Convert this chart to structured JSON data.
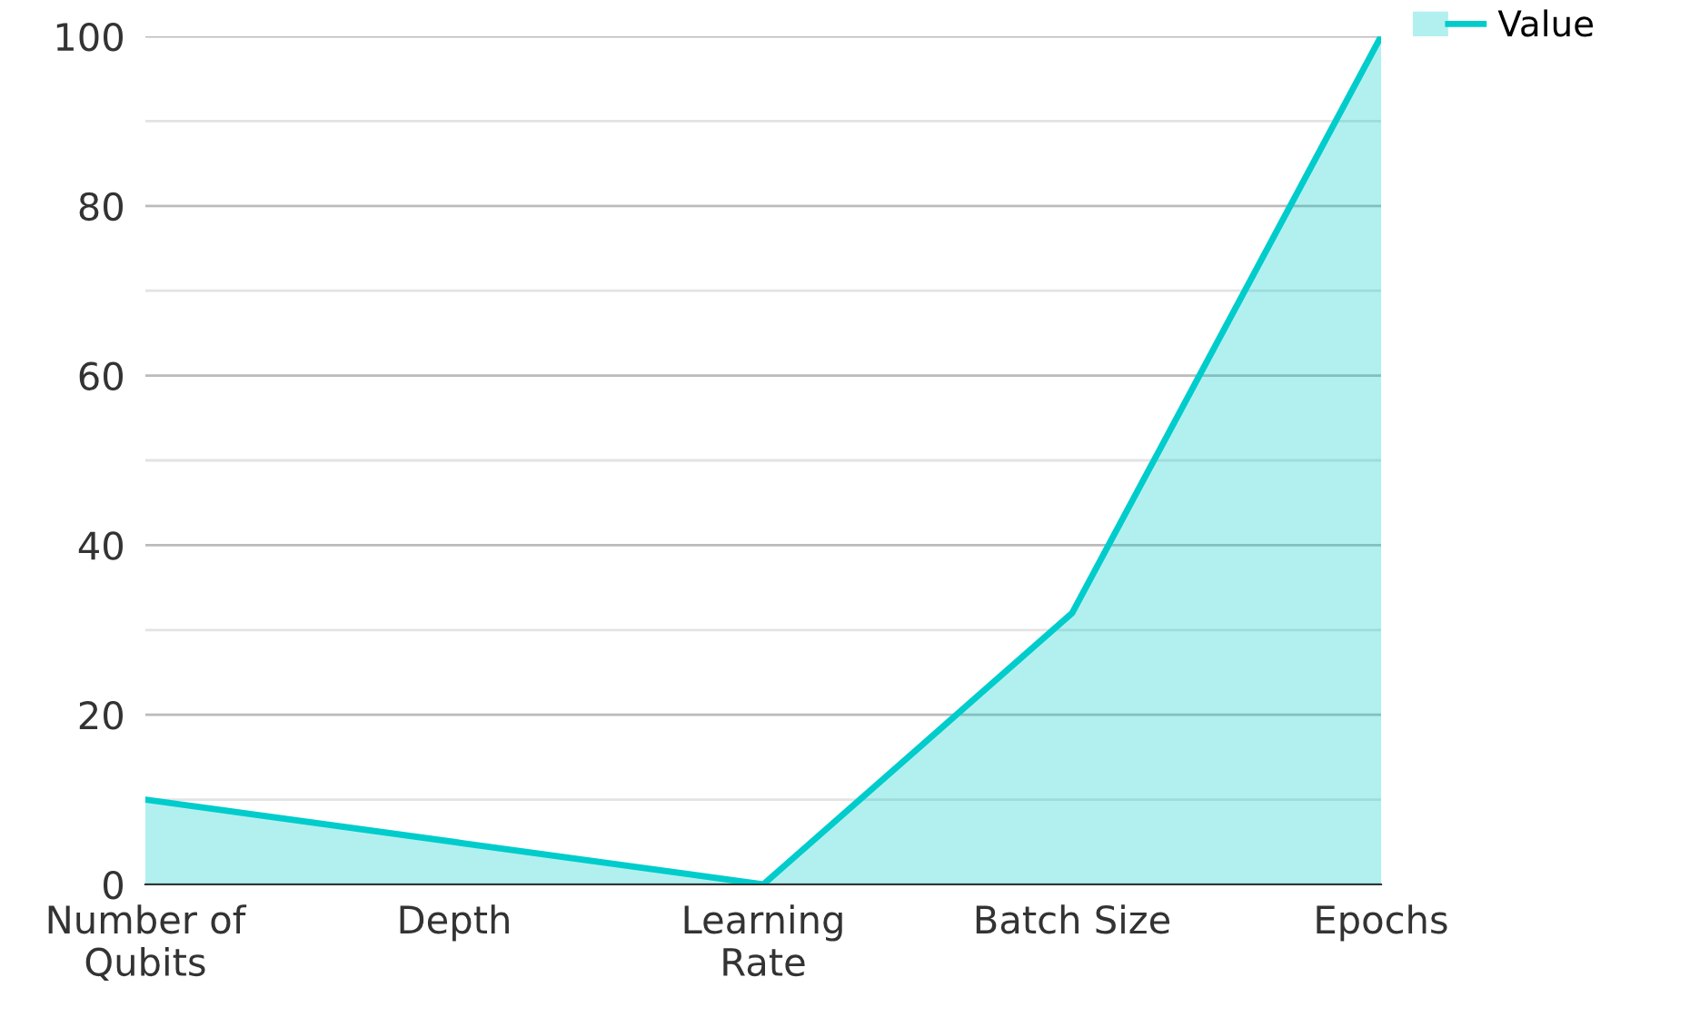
{
  "chart_data": {
    "type": "area",
    "categories": [
      "Number of\nQubits",
      "Depth",
      "Learning\nRate",
      "Batch Size",
      "Epochs"
    ],
    "series": [
      {
        "name": "Value",
        "color": "#00cccc",
        "values": [
          10,
          5,
          0,
          32,
          100
        ]
      }
    ],
    "ylim": [
      0,
      100
    ],
    "yticks": [
      0,
      {
        "value": 10,
        "label": null
      },
      20,
      {
        "value": 30,
        "label": null
      },
      40,
      {
        "value": 50,
        "label": null
      },
      60,
      {
        "value": 70,
        "label": null
      },
      80,
      {
        "value": 90,
        "label": null
      },
      100
    ],
    "grid": "y",
    "legend": "top right"
  }
}
